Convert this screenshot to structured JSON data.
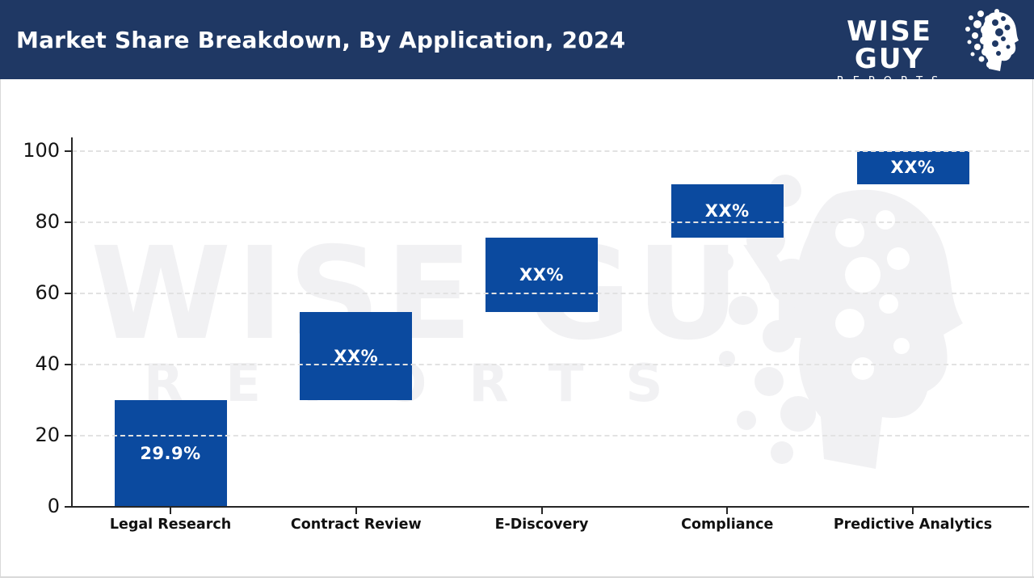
{
  "header": {
    "title": "Market Share Breakdown, By Application, 2024",
    "bg_color": "#1F3864",
    "logo": {
      "line1": "WISE GUY",
      "line2": "REPORTS"
    }
  },
  "watermark": {
    "line1": "WISE GUY",
    "line2": "REPORTS"
  },
  "chart_data": {
    "type": "bar",
    "subtype": "waterfall-floating-bars",
    "title": "Market Share Breakdown, By Application, 2024",
    "categories": [
      "Legal Research",
      "Contract Review",
      "E-Discovery",
      "Compliance",
      "Predictive Analytics"
    ],
    "segments": [
      {
        "category": "Legal Research",
        "start": 0,
        "end": 29.9,
        "label": "29.9%"
      },
      {
        "category": "Contract Review",
        "start": 29.9,
        "end": 54.7,
        "label": "XX%"
      },
      {
        "category": "E-Discovery",
        "start": 54.7,
        "end": 75.7,
        "label": "XX%"
      },
      {
        "category": "Compliance",
        "start": 75.7,
        "end": 90.7,
        "label": "XX%"
      },
      {
        "category": "Predictive Analytics",
        "start": 90.7,
        "end": 100,
        "label": "XX%"
      }
    ],
    "y_ticks": [
      0,
      20,
      40,
      60,
      80,
      100
    ],
    "ylim": [
      0,
      104
    ],
    "xlabel": "",
    "ylabel": "",
    "bar_color": "#0B4A9F",
    "bar_label_color": "#FFFFFF",
    "grid": "horizontal dashed, drawn above bars",
    "legend": "none"
  }
}
